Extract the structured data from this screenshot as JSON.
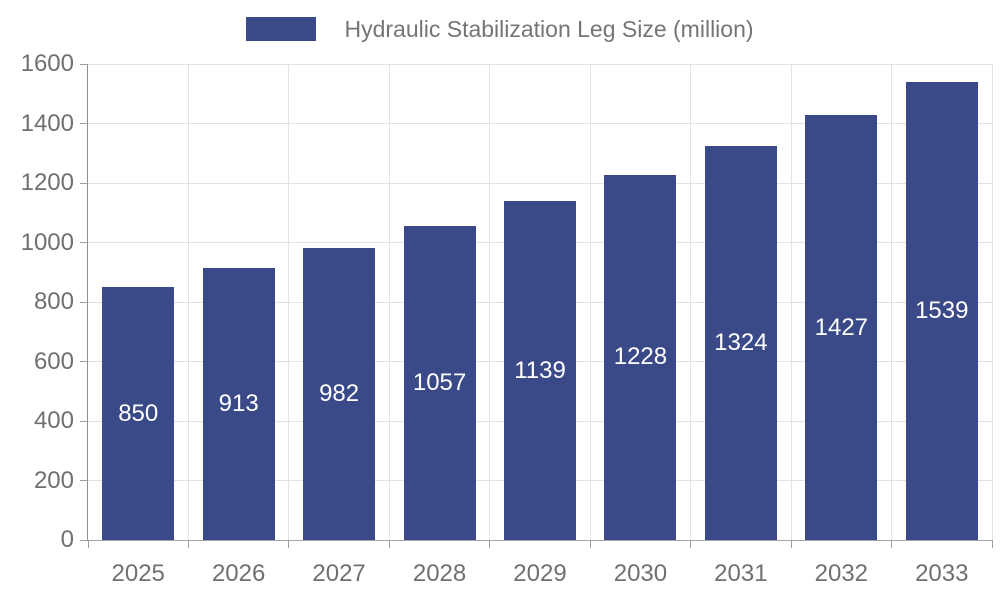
{
  "legend": {
    "label": "Hydraulic Stabilization Leg Size (million)"
  },
  "chart_data": {
    "type": "bar",
    "title": "Hydraulic Stabilization Leg Size (million)",
    "categories": [
      "2025",
      "2026",
      "2027",
      "2028",
      "2029",
      "2030",
      "2031",
      "2032",
      "2033"
    ],
    "values": [
      850,
      913,
      982,
      1057,
      1139,
      1228,
      1324,
      1427,
      1539
    ],
    "xlabel": "",
    "ylabel": "",
    "ylim": [
      0,
      1600
    ],
    "ytick_step": 200,
    "yticks": [
      0,
      200,
      400,
      600,
      800,
      1000,
      1200,
      1400,
      1600
    ],
    "grid": true,
    "legend_position": "top",
    "bar_color": "#3a4a88",
    "value_label_color": "#ffffff",
    "axis_label_color": "#707070",
    "gridline_color": "#e2e2e2",
    "axis_line_color": "#9e9e9e",
    "background_color": "#ffffff"
  }
}
